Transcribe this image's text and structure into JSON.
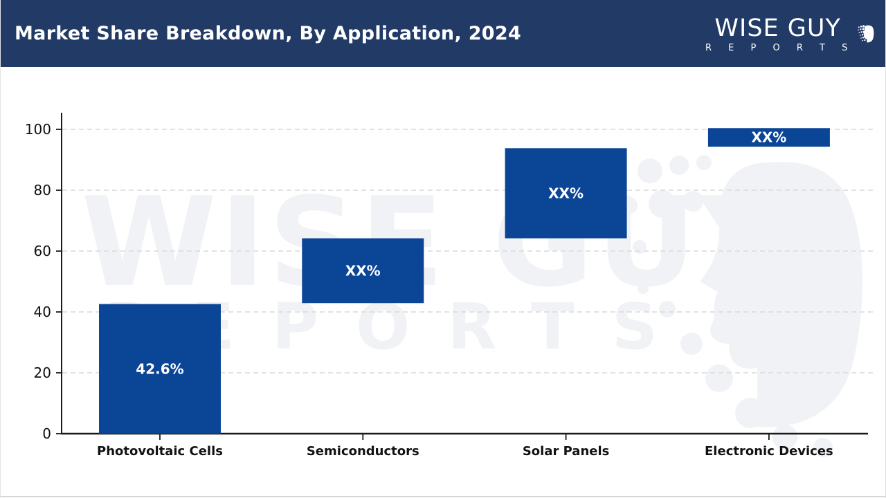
{
  "header": {
    "title": "Market Share Breakdown, By Application, 2024",
    "logo": {
      "line1": "WISE GUY",
      "line2": "R E P O R T S"
    }
  },
  "watermark": {
    "line1": "WISE GUY",
    "line2": "REPORTS"
  },
  "colors": {
    "header_bg": "#213a66",
    "bar": "#0b4596",
    "bar_label": "#ffffff",
    "gridline": "#d9d9d9",
    "axis": "#1a1a1a",
    "tick_text": "#111111",
    "watermark": "#f0f2f5"
  },
  "chart_data": {
    "type": "bar",
    "subtype": "floating-waterfall",
    "title": "Market Share Breakdown, By Application, 2024",
    "xlabel": "",
    "ylabel": "",
    "ylim": [
      0,
      100
    ],
    "yticks": [
      0,
      20,
      40,
      60,
      80,
      100
    ],
    "grid": "horizontal-dashed",
    "legend": "none",
    "categories": [
      "Photovoltaic Cells",
      "Semiconductors",
      "Solar Panels",
      "Electronic Devices"
    ],
    "series": [
      {
        "category": "Photovoltaic Cells",
        "start": 0,
        "end": 42.6,
        "label": "42.6%"
      },
      {
        "category": "Semiconductors",
        "start": 42.9,
        "end": 64.2,
        "label": "XX%"
      },
      {
        "category": "Solar Panels",
        "start": 64.2,
        "end": 93.8,
        "label": "XX%"
      },
      {
        "category": "Electronic Devices",
        "start": 94.3,
        "end": 100.4,
        "label": "XX%"
      }
    ]
  }
}
